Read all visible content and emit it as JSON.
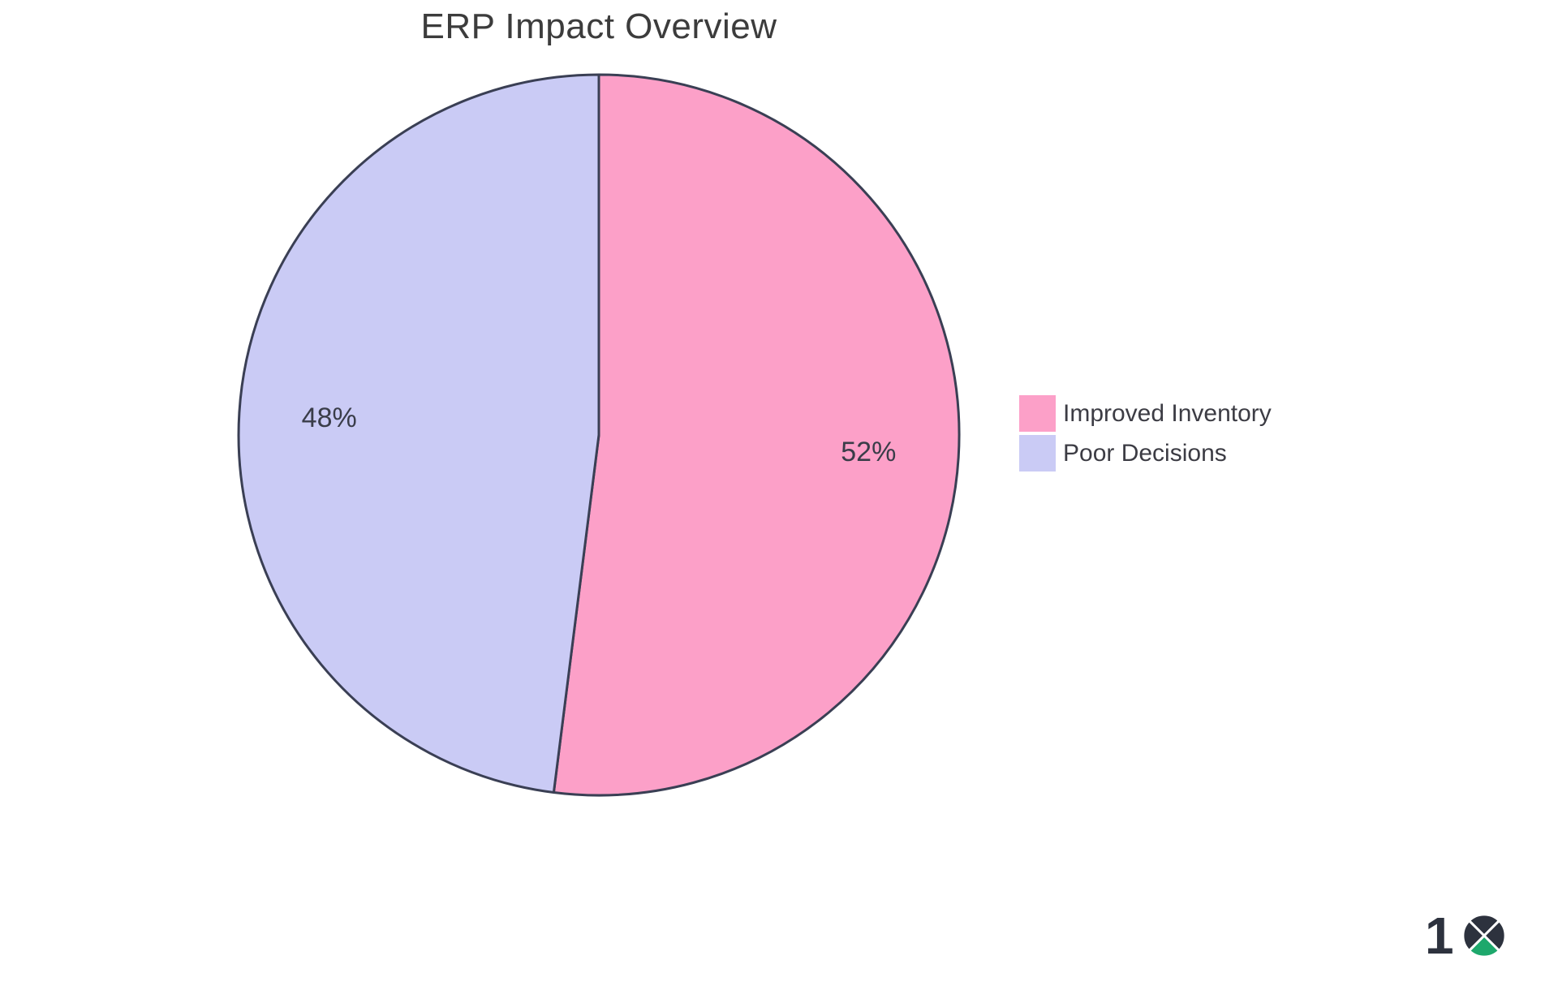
{
  "title": {
    "text": "ERP Impact Overview",
    "color": "#3C3C3C"
  },
  "chart_data": {
    "type": "pie",
    "title": "ERP Impact Overview",
    "categories": [
      "Improved Inventory",
      "Poor Decisions"
    ],
    "values": [
      52,
      48
    ],
    "slice_labels": [
      "52%",
      "48%"
    ],
    "colors": [
      "#FCA0C8",
      "#CACBF5"
    ],
    "slice_stroke_color": "#3A3F54",
    "label_color": "#3A3D49",
    "start_angle": "12 o'clock",
    "direction": "clockwise",
    "legend_position": "right",
    "grid": false
  },
  "legend": {
    "items": [
      {
        "label": "Improved Inventory",
        "color": "#FCA0C8"
      },
      {
        "label": "Poor Decisions",
        "color": "#CACBF5"
      }
    ]
  },
  "logo": {
    "digit": "1",
    "icon": "x-cross-circle-icon",
    "dark_color": "#2D323E",
    "green_color": "#1EA86C"
  }
}
